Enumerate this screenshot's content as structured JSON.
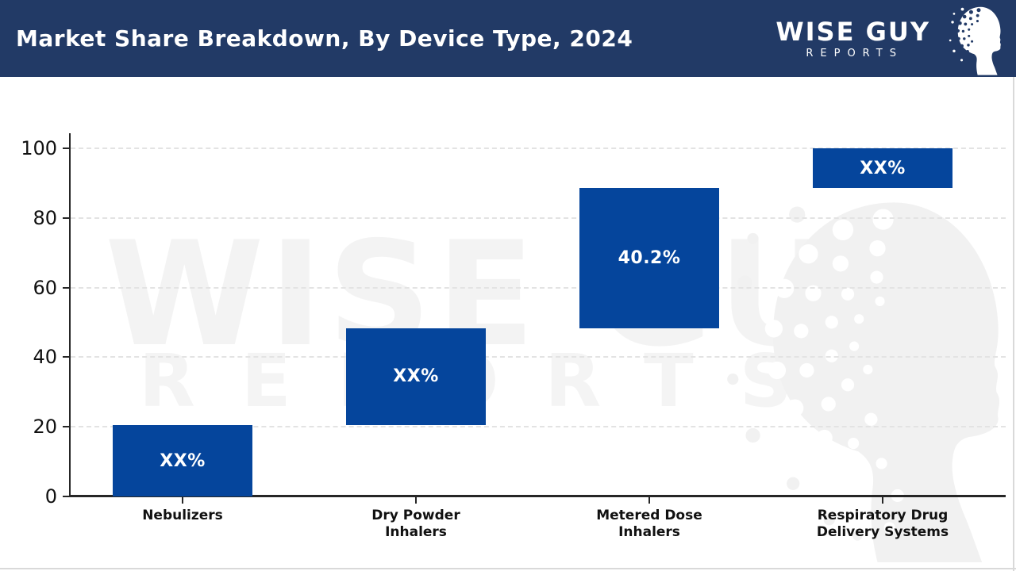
{
  "header": {
    "title": "Market Share Breakdown, By Device Type, 2024",
    "logo_line1": "WISE GUY",
    "logo_line2": "REPORTS"
  },
  "watermark": {
    "line1": "WISE GUY",
    "line2": "REPORTS"
  },
  "chart_data": {
    "type": "bar",
    "subtype": "floating-waterfall",
    "title": "Market Share Breakdown, By Device Type, 2024",
    "categories": [
      "Nebulizers",
      "Dry Powder\nInhalers",
      "Metered Dose\nInhalers",
      "Respiratory Drug\nDelivery Systems"
    ],
    "series": [
      {
        "name": "Market share (%)",
        "segments": [
          {
            "category": "Nebulizers",
            "start": 0,
            "end": 20.4,
            "label": "XX%"
          },
          {
            "category": "Dry Powder Inhalers",
            "start": 20.4,
            "end": 48.4,
            "label": "XX%"
          },
          {
            "category": "Metered Dose Inhalers",
            "start": 48.4,
            "end": 88.6,
            "label": "40.2%"
          },
          {
            "category": "Respiratory Drug Delivery Systems",
            "start": 88.6,
            "end": 100,
            "label": "XX%"
          }
        ]
      }
    ],
    "ylim": [
      0,
      100
    ],
    "yticks": [
      0,
      20,
      40,
      60,
      80,
      100
    ],
    "grid": "dashed horizontal",
    "legend": "none",
    "bar_color": "#05459c",
    "bar_label_color": "#ffffff"
  },
  "colors": {
    "header_bg": "#223a66",
    "bar": "#05459c",
    "axis": "#262626",
    "gridline": "#e3e3e3",
    "watermark": "#f3f3f3",
    "text": "#111111",
    "edge_hairline": "#d9d9d9"
  }
}
